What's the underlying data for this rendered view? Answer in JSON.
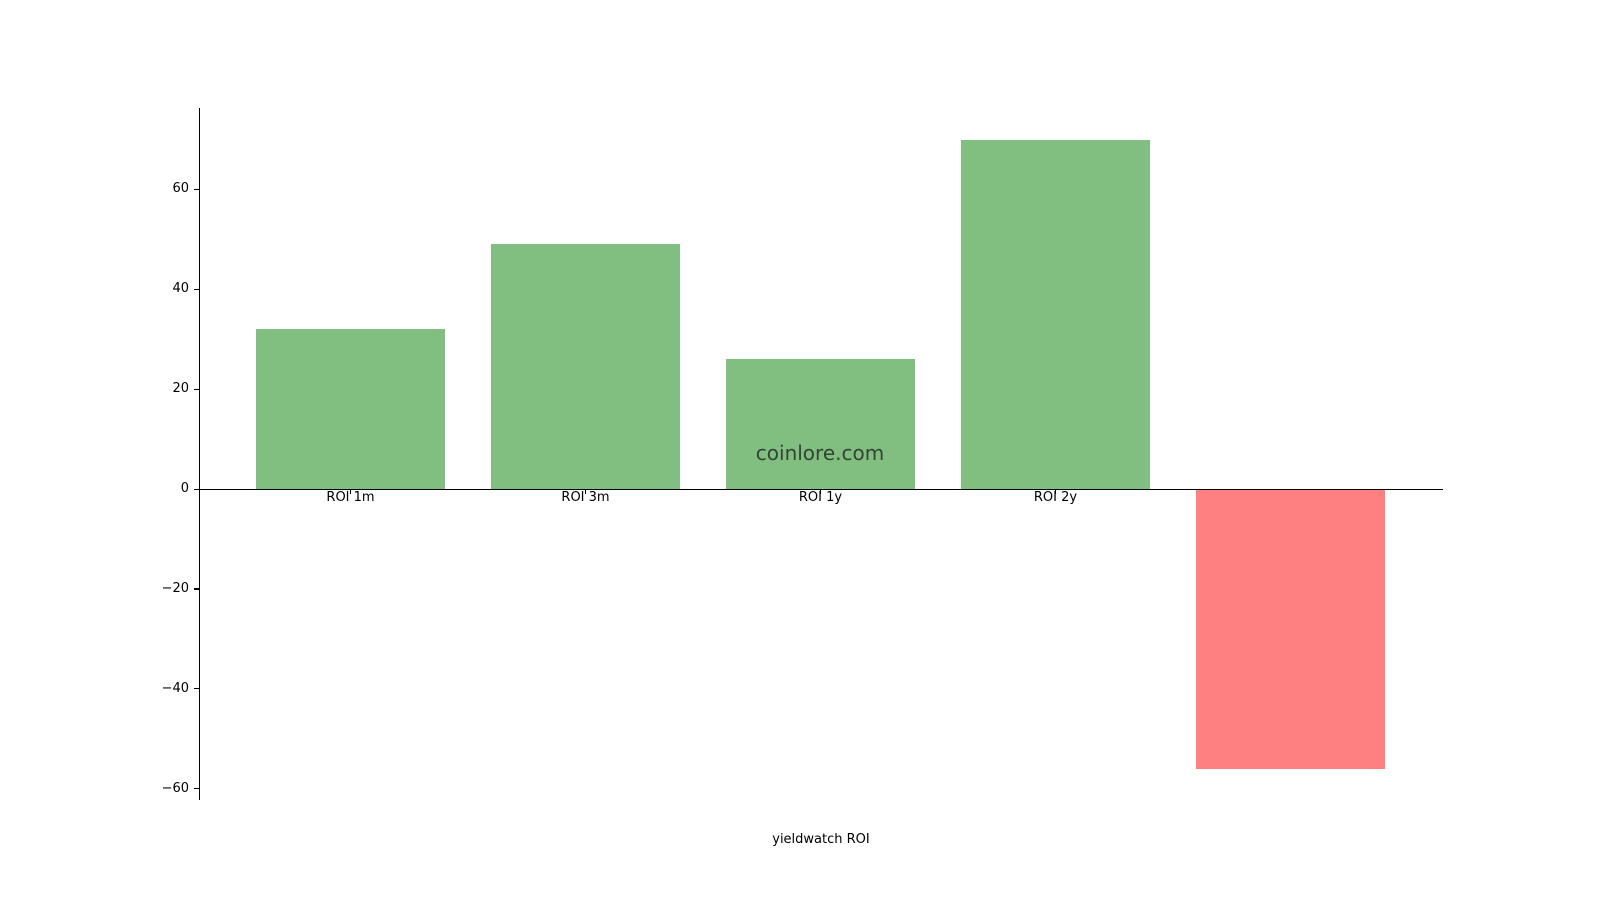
{
  "chart_data": {
    "type": "bar",
    "title": "yieldwatch ROI",
    "watermark": "coinlore.com",
    "categories": [
      "ROI 1m",
      "ROI 3m",
      "ROI 1y",
      "ROI 2y",
      ""
    ],
    "values": [
      32,
      49,
      26,
      70,
      -56
    ],
    "series": [
      {
        "name": "yieldwatch ROI",
        "values": [
          32,
          49,
          26,
          70,
          -56
        ]
      }
    ],
    "xlabel": "",
    "ylabel": "",
    "ylim": [
      -62.3,
      76.3
    ],
    "yticks": [
      60,
      40,
      20,
      0,
      -20,
      -40,
      -60
    ],
    "ytick_labels": [
      "60",
      "40",
      "20",
      "0",
      "−20",
      "−40",
      "−60"
    ],
    "grid": false,
    "legend_position": "none",
    "colors": {
      "positive_bar": "#80bf80",
      "negative_bar": "#ff8080",
      "axis": "#000000",
      "text": "#000000",
      "watermark_text": "rgba(35,35,35,0.8)",
      "background": "#ffffff"
    }
  }
}
